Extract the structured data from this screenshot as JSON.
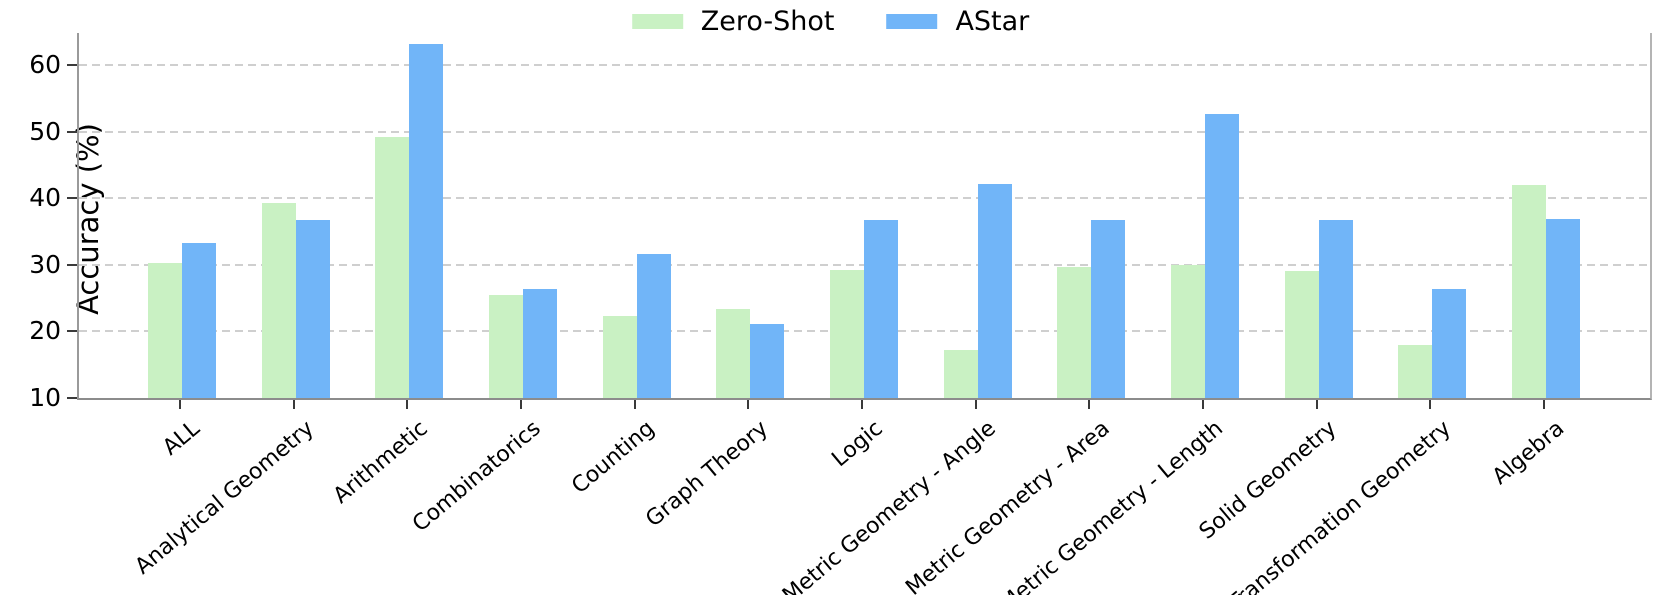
{
  "chart_data": {
    "type": "bar",
    "title": "",
    "xlabel": "",
    "ylabel": "Accuracy (%)",
    "categories": [
      "ALL",
      "Analytical Geometry",
      "Arithmetic",
      "Combinatorics",
      "Counting",
      "Graph Theory",
      "Logic",
      "Metric Geometry - Angle",
      "Metric Geometry - Area",
      "Metric Geometry - Length",
      "Solid Geometry",
      "Transformation Geometry",
      "Algebra"
    ],
    "series": [
      {
        "name": "Zero-Shot",
        "color": "#c9f1c3",
        "values": [
          30.3,
          39.3,
          49.2,
          25.5,
          22.3,
          23.3,
          29.2,
          17.2,
          29.7,
          30.0,
          29.0,
          17.9,
          42.0
        ]
      },
      {
        "name": "AStar",
        "color": "#71b5f8",
        "values": [
          33.2,
          36.8,
          63.2,
          26.3,
          31.6,
          21.1,
          36.8,
          42.1,
          36.8,
          52.6,
          36.8,
          26.3,
          36.9
        ]
      }
    ],
    "ylim": [
      10,
      64.8
    ],
    "yticks": [
      10,
      20,
      30,
      40,
      50,
      60
    ],
    "grid": "horizontal-dashed",
    "legend_position": "top-center",
    "x_tick_rotation_deg": 40
  }
}
